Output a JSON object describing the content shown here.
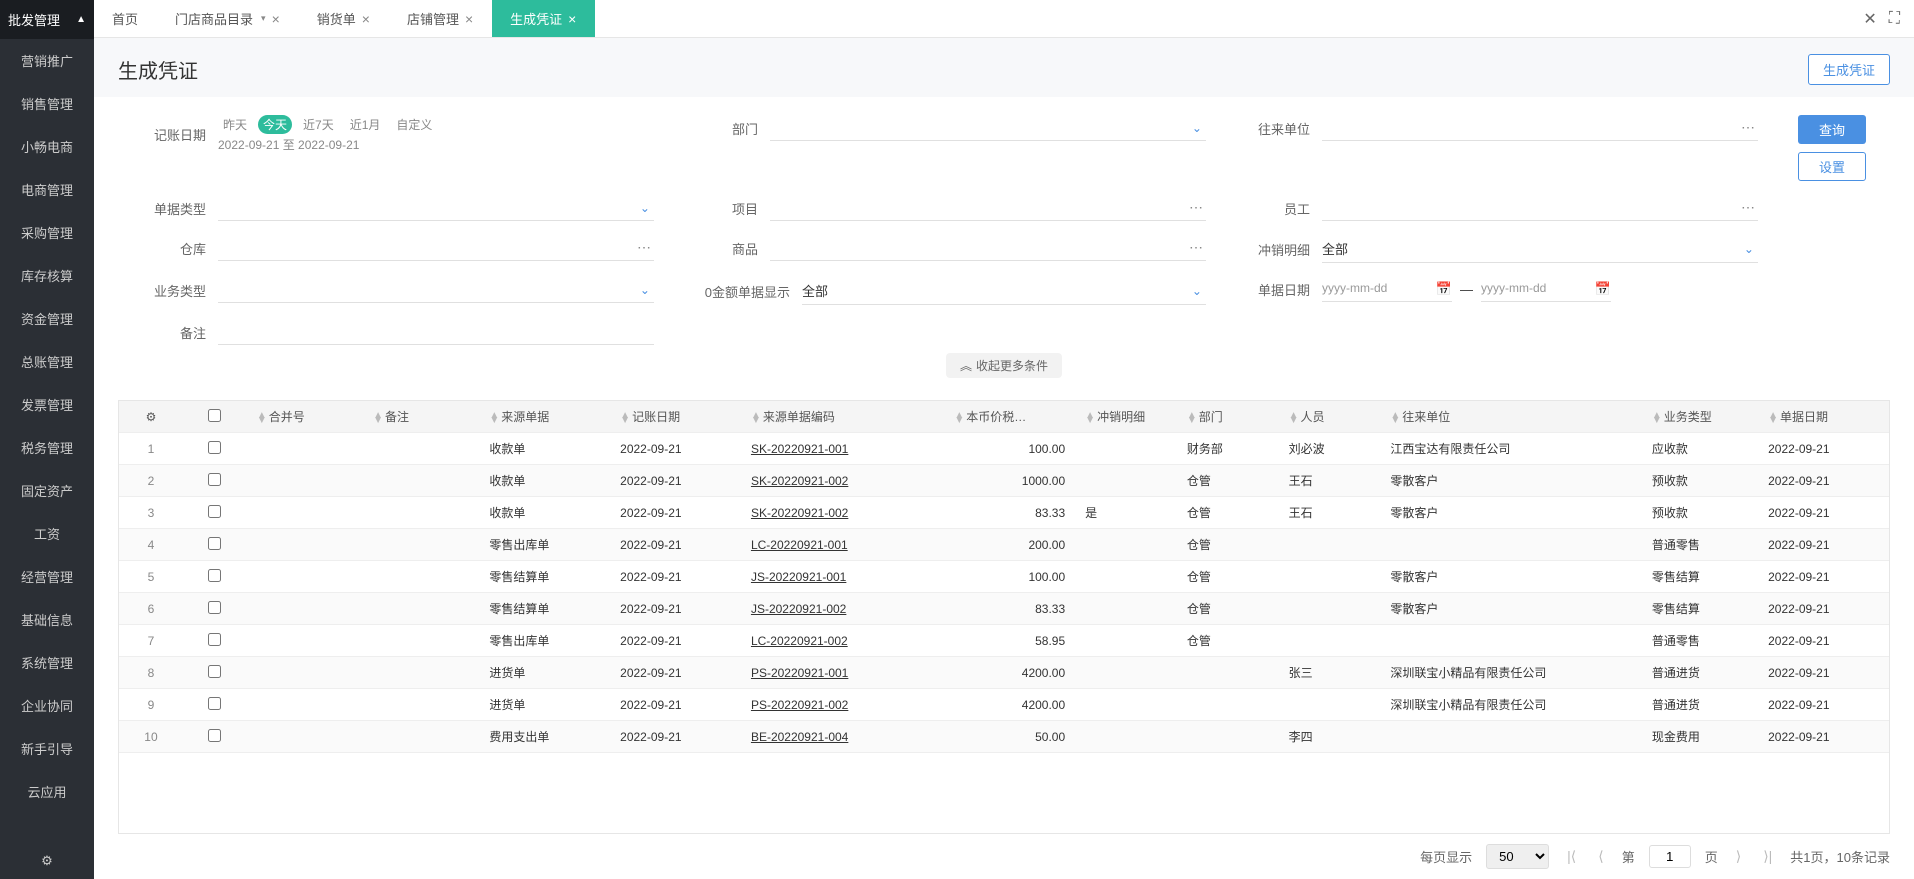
{
  "sidebar": {
    "topLabel": "批发管理",
    "items": [
      "营销推广",
      "销售管理",
      "小畅电商",
      "电商管理",
      "采购管理",
      "库存核算",
      "资金管理",
      "总账管理",
      "发票管理",
      "税务管理",
      "固定资产",
      "工资",
      "经营管理",
      "基础信息",
      "系统管理",
      "企业协同",
      "新手引导",
      "云应用"
    ]
  },
  "tabs": [
    {
      "label": "首页",
      "closable": false,
      "hasChevron": false
    },
    {
      "label": "门店商品目录",
      "closable": true,
      "hasChevron": true
    },
    {
      "label": "销货单",
      "closable": true,
      "hasChevron": false
    },
    {
      "label": "店铺管理",
      "closable": true,
      "hasChevron": false
    },
    {
      "label": "生成凭证",
      "closable": true,
      "hasChevron": false,
      "active": true
    }
  ],
  "page": {
    "title": "生成凭证",
    "generateBtn": "生成凭证"
  },
  "filters": {
    "entryDate": {
      "label": "记账日期",
      "tags": [
        "昨天",
        "今天",
        "近7天",
        "近1月",
        "自定义"
      ],
      "activeTag": "今天",
      "rangeText": "2022-09-21 至 2022-09-21"
    },
    "department": {
      "label": "部门"
    },
    "partner": {
      "label": "往来单位"
    },
    "docType": {
      "label": "单据类型"
    },
    "project": {
      "label": "项目"
    },
    "employee": {
      "label": "员工"
    },
    "warehouse": {
      "label": "仓库"
    },
    "product": {
      "label": "商品"
    },
    "writeoff": {
      "label": "冲销明细",
      "value": "全部"
    },
    "bizType": {
      "label": "业务类型"
    },
    "zeroAmount": {
      "label": "0金额单据显示",
      "value": "全部"
    },
    "docDate": {
      "label": "单据日期",
      "placeholder": "yyyy-mm-dd"
    },
    "remark": {
      "label": "备注"
    },
    "queryBtn": "查询",
    "setupBtn": "设置",
    "collapseText": "收起更多条件"
  },
  "table": {
    "headers": [
      "",
      "",
      "合并号",
      "备注",
      "来源单据",
      "记账日期",
      "来源单据编码",
      "本币价税…",
      "冲销明细",
      "部门",
      "人员",
      "往来单位",
      "业务类型",
      "单据日期"
    ],
    "colWidths": [
      "44px",
      "44px",
      "80px",
      "80px",
      "90px",
      "90px",
      "140px",
      "90px",
      "70px",
      "70px",
      "70px",
      "180px",
      "80px",
      "90px"
    ],
    "rows": [
      {
        "n": 1,
        "src": "收款单",
        "date": "2022-09-21",
        "code": "SK-20220921-001",
        "amt": "100.00",
        "wo": "",
        "dept": "财务部",
        "person": "刘必波",
        "unit": "江西宝达有限责任公司",
        "btype": "应收款",
        "ddate": "2022-09-21"
      },
      {
        "n": 2,
        "src": "收款单",
        "date": "2022-09-21",
        "code": "SK-20220921-002",
        "amt": "1000.00",
        "wo": "",
        "dept": "仓管",
        "person": "王石",
        "unit": "零散客户",
        "btype": "预收款",
        "ddate": "2022-09-21"
      },
      {
        "n": 3,
        "src": "收款单",
        "date": "2022-09-21",
        "code": "SK-20220921-002",
        "amt": "83.33",
        "wo": "是",
        "dept": "仓管",
        "person": "王石",
        "unit": "零散客户",
        "btype": "预收款",
        "ddate": "2022-09-21"
      },
      {
        "n": 4,
        "src": "零售出库单",
        "date": "2022-09-21",
        "code": "LC-20220921-001",
        "amt": "200.00",
        "wo": "",
        "dept": "仓管",
        "person": "",
        "unit": "",
        "btype": "普通零售",
        "ddate": "2022-09-21"
      },
      {
        "n": 5,
        "src": "零售结算单",
        "date": "2022-09-21",
        "code": "JS-20220921-001",
        "amt": "100.00",
        "wo": "",
        "dept": "仓管",
        "person": "",
        "unit": "零散客户",
        "btype": "零售结算",
        "ddate": "2022-09-21"
      },
      {
        "n": 6,
        "src": "零售结算单",
        "date": "2022-09-21",
        "code": "JS-20220921-002",
        "amt": "83.33",
        "wo": "",
        "dept": "仓管",
        "person": "",
        "unit": "零散客户",
        "btype": "零售结算",
        "ddate": "2022-09-21"
      },
      {
        "n": 7,
        "src": "零售出库单",
        "date": "2022-09-21",
        "code": "LC-20220921-002",
        "amt": "58.95",
        "wo": "",
        "dept": "仓管",
        "person": "",
        "unit": "",
        "btype": "普通零售",
        "ddate": "2022-09-21"
      },
      {
        "n": 8,
        "src": "进货单",
        "date": "2022-09-21",
        "code": "PS-20220921-001",
        "amt": "4200.00",
        "wo": "",
        "dept": "",
        "person": "张三",
        "unit": "深圳联宝小精品有限责任公司",
        "btype": "普通进货",
        "ddate": "2022-09-21"
      },
      {
        "n": 9,
        "src": "进货单",
        "date": "2022-09-21",
        "code": "PS-20220921-002",
        "amt": "4200.00",
        "wo": "",
        "dept": "",
        "person": "",
        "unit": "深圳联宝小精品有限责任公司",
        "btype": "普通进货",
        "ddate": "2022-09-21"
      },
      {
        "n": 10,
        "src": "费用支出单",
        "date": "2022-09-21",
        "code": "BE-20220921-004",
        "amt": "50.00",
        "wo": "",
        "dept": "",
        "person": "李四",
        "unit": "",
        "btype": "现金费用",
        "ddate": "2022-09-21"
      }
    ]
  },
  "pager": {
    "perPageLabel": "每页显示",
    "perPage": "50",
    "pageLabel1": "第",
    "pageNum": "1",
    "pageLabel2": "页",
    "summary": "共1页，10条记录"
  }
}
